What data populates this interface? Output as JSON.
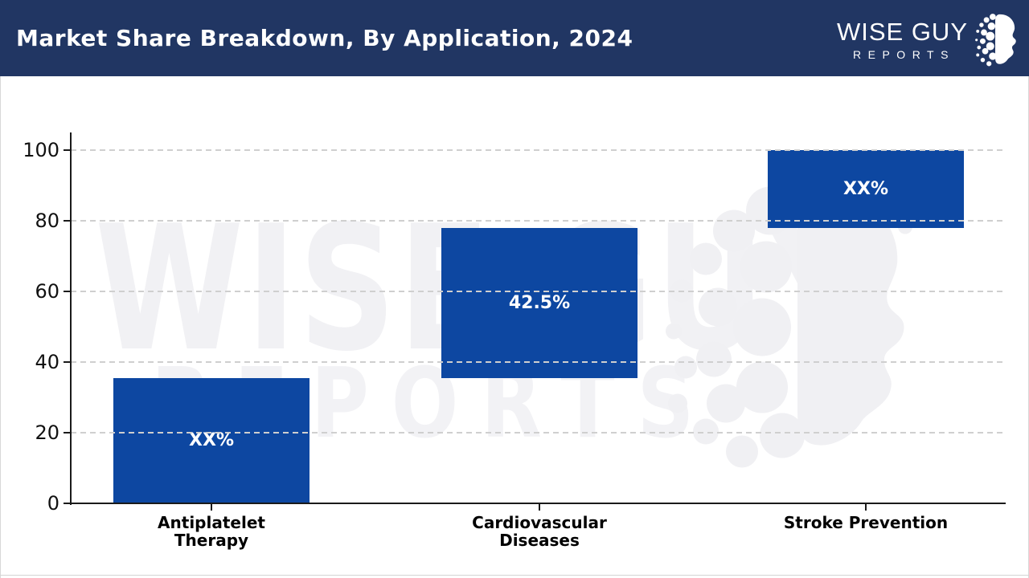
{
  "header": {
    "title": "Market Share Breakdown, By Application, 2024",
    "brand_line1": "WISE GUY",
    "brand_line2": "REPORTS"
  },
  "watermark": {
    "line1": "WISE GUY",
    "line2": "REPORTS"
  },
  "chart_data": {
    "type": "bar",
    "subtype": "floating-stacked-percentage",
    "title": "Market Share Breakdown, By Application, 2024",
    "categories": [
      "Antiplatelet\nTherapy",
      "Cardiovascular\nDiseases",
      "Stroke Prevention"
    ],
    "segments": [
      {
        "category": "Antiplatelet Therapy",
        "label": "XX%",
        "start": 0,
        "end": 35.5
      },
      {
        "category": "Cardiovascular Diseases",
        "label": "42.5%",
        "start": 35.5,
        "end": 78
      },
      {
        "category": "Stroke Prevention",
        "label": "XX%",
        "start": 78,
        "end": 100
      }
    ],
    "yticks": [
      0,
      20,
      40,
      60,
      80,
      100
    ],
    "ylim": [
      0,
      105
    ],
    "xlabel": "",
    "ylabel": "",
    "grid": "horizontal-dashed",
    "legend": "none",
    "bar_color": "#0d47a1",
    "bar_label_color": "#ffffff"
  },
  "colors": {
    "header_bg": "#213663",
    "bar": "#0d47a1",
    "gridline": "#cfcfcf",
    "axis": "#1a1a1a",
    "watermark": "#f1f1f4",
    "page_bg": "#ffffff"
  }
}
